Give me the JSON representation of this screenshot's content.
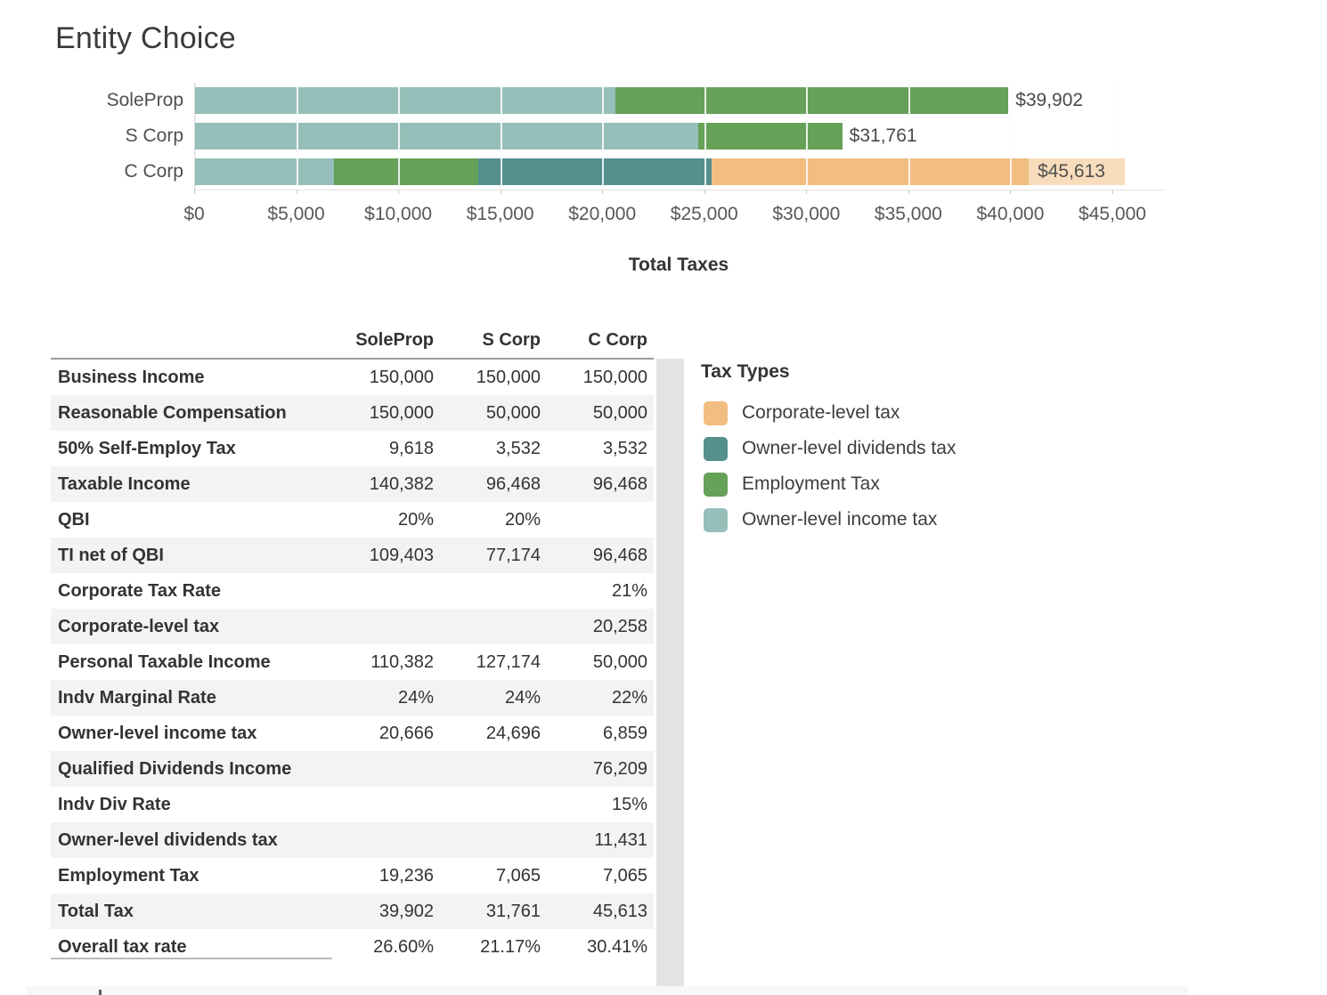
{
  "chart_data": {
    "type": "bar",
    "orientation": "horizontal-stacked",
    "title": "Entity Choice",
    "xlabel": "Total Taxes",
    "categories": [
      "SoleProp",
      "S Corp",
      "C Corp"
    ],
    "series": [
      {
        "name": "Owner-level income tax",
        "color": "#95bfb8",
        "values": [
          20666,
          24696,
          6859
        ]
      },
      {
        "name": "Employment Tax",
        "color": "#66a158",
        "values": [
          19236,
          7065,
          7065
        ]
      },
      {
        "name": "Owner-level dividends tax",
        "color": "#55908f",
        "values": [
          0,
          0,
          11431
        ]
      },
      {
        "name": "Corporate-level tax",
        "color": "#f2bd81",
        "values": [
          0,
          0,
          20258
        ]
      }
    ],
    "totals": [
      39902,
      31761,
      45613
    ],
    "total_labels": [
      "$39,902",
      "$31,761",
      "$45,613"
    ],
    "totals_inside_bar": [
      false,
      false,
      true
    ],
    "xlim": [
      0,
      45000
    ],
    "x_tick_step": 5000,
    "x_tick_labels": [
      "$0",
      "$5,000",
      "$10,000",
      "$15,000",
      "$20,000",
      "$25,000",
      "$30,000",
      "$35,000",
      "$40,000",
      "$45,000"
    ],
    "grid": true,
    "legend_position": "right-of-table"
  },
  "legend": {
    "title": "Tax Types",
    "items": [
      {
        "label": "Corporate-level tax",
        "color": "#f2bd81"
      },
      {
        "label": "Owner-level dividends tax",
        "color": "#55908f"
      },
      {
        "label": "Employment Tax",
        "color": "#66a158"
      },
      {
        "label": "Owner-level income tax",
        "color": "#95bfb8"
      }
    ]
  },
  "table": {
    "columns": [
      "SoleProp",
      "S Corp",
      "C Corp"
    ],
    "rows": [
      {
        "label": "Business Income",
        "values": [
          "150,000",
          "150,000",
          "150,000"
        ]
      },
      {
        "label": "Reasonable Compensation",
        "values": [
          "150,000",
          "50,000",
          "50,000"
        ]
      },
      {
        "label": "50% Self-Employ Tax",
        "values": [
          "9,618",
          "3,532",
          "3,532"
        ]
      },
      {
        "label": "Taxable Income",
        "values": [
          "140,382",
          "96,468",
          "96,468"
        ]
      },
      {
        "label": "QBI",
        "values": [
          "20%",
          "20%",
          ""
        ]
      },
      {
        "label": "TI net of QBI",
        "values": [
          "109,403",
          "77,174",
          "96,468"
        ]
      },
      {
        "label": "Corporate Tax Rate",
        "values": [
          "",
          "",
          "21%"
        ]
      },
      {
        "label": "Corporate-level tax",
        "values": [
          "",
          "",
          "20,258"
        ]
      },
      {
        "label": "Personal Taxable Income",
        "values": [
          "110,382",
          "127,174",
          "50,000"
        ]
      },
      {
        "label": "Indv Marginal Rate",
        "values": [
          "24%",
          "24%",
          "22%"
        ]
      },
      {
        "label": "Owner-level income tax",
        "values": [
          "20,666",
          "24,696",
          "6,859"
        ]
      },
      {
        "label": "Qualified Dividends Income",
        "values": [
          "",
          "",
          "76,209"
        ]
      },
      {
        "label": "Indv Div Rate",
        "values": [
          "",
          "",
          "15%"
        ]
      },
      {
        "label": "Owner-level dividends tax",
        "values": [
          "",
          "",
          "11,431"
        ]
      },
      {
        "label": "Employment Tax",
        "values": [
          "19,236",
          "7,065",
          "7,065"
        ]
      },
      {
        "label": "Total Tax",
        "values": [
          "39,902",
          "31,761",
          "45,613"
        ]
      },
      {
        "label": "Overall tax rate",
        "values": [
          "26.60%",
          "21.17%",
          "30.41%"
        ]
      }
    ]
  }
}
